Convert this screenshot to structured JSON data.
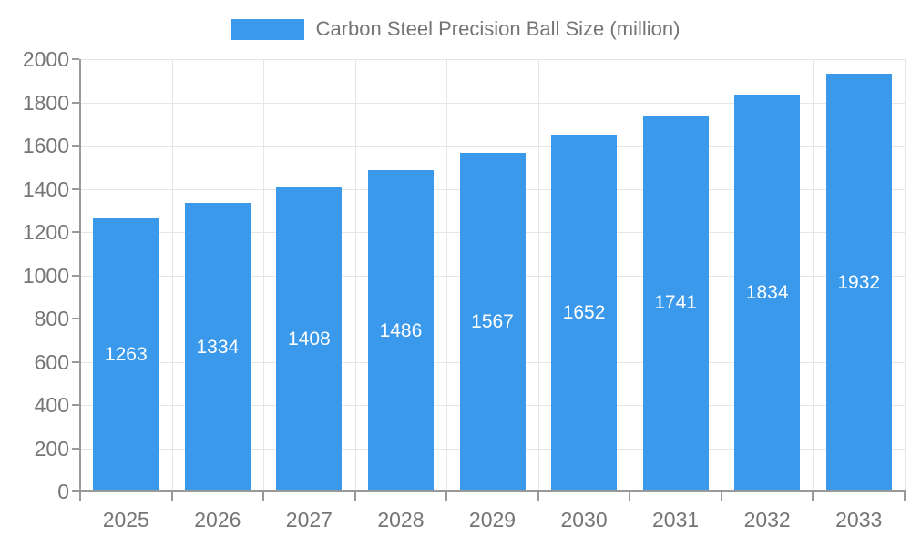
{
  "chart_data": {
    "type": "bar",
    "title": "Carbon Steel Precision Ball Size (million)",
    "categories": [
      "2025",
      "2026",
      "2027",
      "2028",
      "2029",
      "2030",
      "2031",
      "2032",
      "2033"
    ],
    "values": [
      1263,
      1334,
      1408,
      1486,
      1567,
      1652,
      1741,
      1834,
      1932
    ],
    "xlabel": "",
    "ylabel": "",
    "ylim": [
      0,
      2000
    ],
    "ytick_step": 200,
    "ytick_labels": [
      "0",
      "200",
      "400",
      "600",
      "800",
      "1000",
      "1200",
      "1400",
      "1600",
      "1800",
      "2000"
    ],
    "grid": true,
    "legend_position": "top-center",
    "value_labels": "inside-center",
    "colors": {
      "bar": "#3B99EC",
      "value_label": "#FFFFFF",
      "axis_text": "#757575",
      "axis_line": "#999999",
      "gridline": "#E6E6E6",
      "background": "#FFFFFF"
    }
  }
}
